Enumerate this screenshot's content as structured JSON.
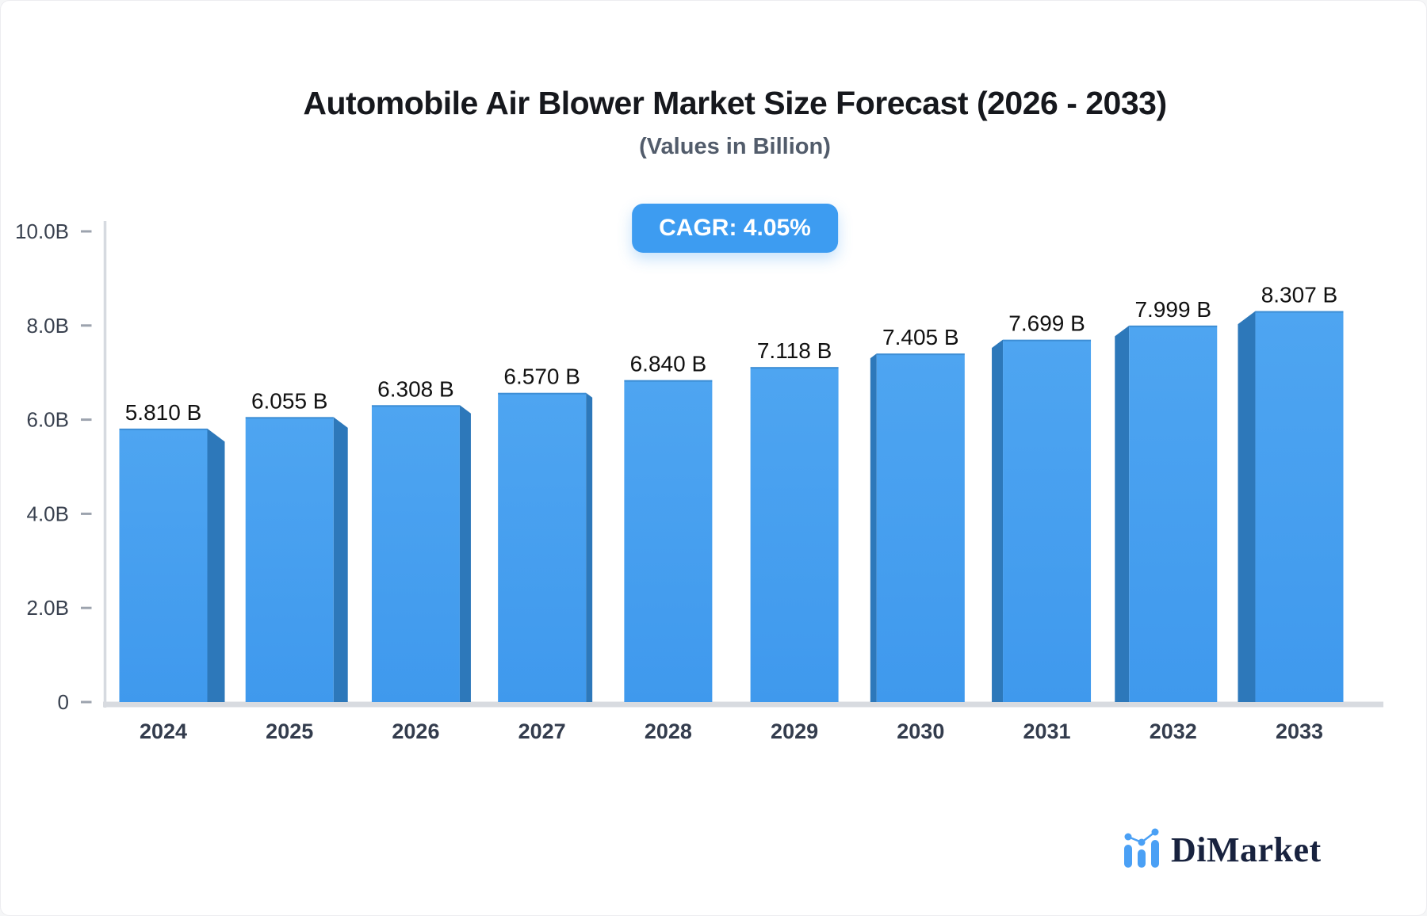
{
  "title": "Automobile Air Blower Market Size Forecast (2026 - 2033)",
  "subtitle": "(Values in Billion)",
  "badge": {
    "label": "CAGR: 4.05%",
    "color": "#3d9cf1"
  },
  "logo": {
    "text": "DiMarket",
    "icon": "bar-chart-logo-icon"
  },
  "chart_data": {
    "type": "bar",
    "title": "Automobile Air Blower Market Size Forecast (2026 - 2033)",
    "subtitle": "(Values in Billion)",
    "categories": [
      "2024",
      "2025",
      "2026",
      "2027",
      "2028",
      "2029",
      "2030",
      "2031",
      "2032",
      "2033"
    ],
    "values": [
      5.81,
      6.055,
      6.308,
      6.57,
      6.84,
      7.118,
      7.405,
      7.699,
      7.999,
      8.307
    ],
    "value_labels": [
      "5.810 B",
      "6.055 B",
      "6.308 B",
      "6.570 B",
      "6.840 B",
      "7.118 B",
      "7.405 B",
      "7.699 B",
      "7.999 B",
      "8.307 B"
    ],
    "xlabel": "",
    "ylabel": "",
    "ylim": [
      0,
      10
    ],
    "yticks": [
      {
        "value": 10,
        "label": "10.0B"
      },
      {
        "value": 8,
        "label": "8.0B"
      },
      {
        "value": 6,
        "label": "6.0B"
      },
      {
        "value": 4,
        "label": "4.0B"
      },
      {
        "value": 2,
        "label": "2.0B"
      },
      {
        "value": 0,
        "label": "0"
      }
    ],
    "grid": false,
    "legend": null,
    "annotation": "CAGR: 4.05%",
    "colors": {
      "bar_face_top": "#4EA5F1",
      "bar_face_bottom": "#3F99ED",
      "bar_side": "#2D78BA",
      "bar_top_edge": "rgba(23,88,148,0.30)",
      "axis_line": "#D6DAE0",
      "baseline": "#D8DBE0",
      "tick_dash": "#9CA3AE",
      "tick_text": "#39414f",
      "year_text": "#333c4d",
      "value_text": "#111111"
    }
  }
}
